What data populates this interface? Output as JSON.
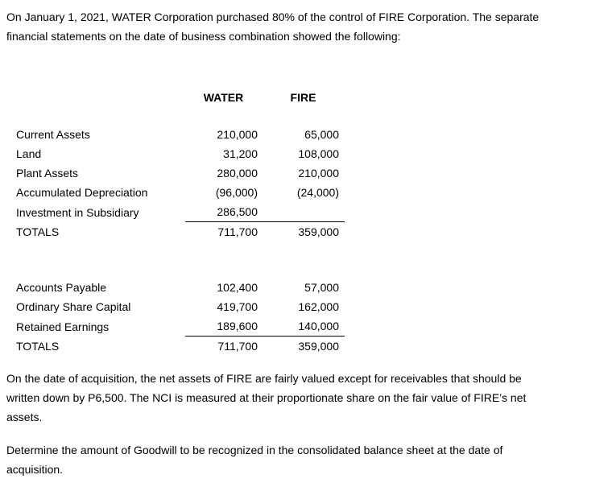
{
  "intro": "On January 1, 2021, WATER Corporation purchased 80% of the control of FIRE Corporation. The separate\nfinancial statements on the date of business combination showed the following:",
  "table": {
    "columns": {
      "water": "WATER",
      "fire": "FIRE"
    },
    "assets": [
      {
        "label": "Current Assets",
        "water": "210,000",
        "fire": "65,000"
      },
      {
        "label": "Land",
        "water": "31,200",
        "fire": "108,000"
      },
      {
        "label": "Plant Assets",
        "water": "280,000",
        "fire": "210,000"
      },
      {
        "label": "Accumulated Depreciation",
        "water": "(96,000)",
        "fire": "(24,000)"
      },
      {
        "label": "Investment in Subsidiary",
        "water": "286,500",
        "fire": ""
      }
    ],
    "assets_total": {
      "label": "TOTALS",
      "water": "711,700",
      "fire": "359,000"
    },
    "equities": [
      {
        "label": "Accounts Payable",
        "water": "102,400",
        "fire": "57,000"
      },
      {
        "label": "Ordinary Share Capital",
        "water": "419,700",
        "fire": "162,000"
      },
      {
        "label": "Retained Earnings",
        "water": "189,600",
        "fire": "140,000"
      }
    ],
    "equities_total": {
      "label": "TOTALS",
      "water": "711,700",
      "fire": "359,000"
    }
  },
  "note": "On the date of acquisition, the net assets of FIRE are fairly valued except for receivables that should be\nwritten down by P6,500. The NCI is measured at their proportionate share on the fair value of FIRE’s net\nassets.",
  "question": "Determine the amount of Goodwill to be recognized in the consolidated balance sheet at the date of\nacquisition."
}
